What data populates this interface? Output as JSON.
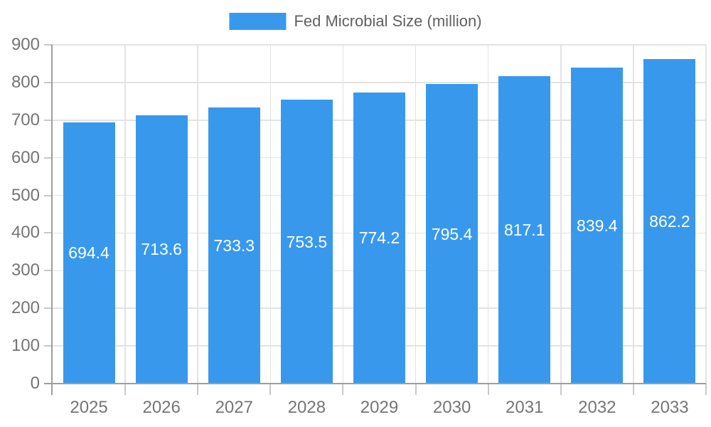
{
  "legend": {
    "label": "Fed Microbial Size (million)"
  },
  "colors": {
    "background": "#ffffff",
    "bar": "#3899EC",
    "grid": "#e3e3e3",
    "axis": "#9e9e9e",
    "tick": "#c9c9c9",
    "axis_label": "#757575",
    "legend_text": "#616161",
    "bar_label": "#ffffff"
  },
  "chart_data": {
    "type": "bar",
    "title": "Fed Microbial Size (million)",
    "categories": [
      "2025",
      "2026",
      "2027",
      "2028",
      "2029",
      "2030",
      "2031",
      "2032",
      "2033"
    ],
    "values": [
      694.4,
      713.6,
      733.3,
      753.5,
      774.2,
      795.4,
      817.1,
      839.4,
      862.2
    ],
    "value_labels": [
      "694.4",
      "713.6",
      "733.3",
      "753.5",
      "774.2",
      "795.4",
      "817.1",
      "839.4",
      "862.2"
    ],
    "xlabel": "",
    "ylabel": "",
    "ylim": [
      0,
      900
    ],
    "yticks": [
      0,
      100,
      200,
      300,
      400,
      500,
      600,
      700,
      800,
      900
    ],
    "grid": true,
    "legend_position": "top",
    "value_label_position": "center-inside"
  }
}
